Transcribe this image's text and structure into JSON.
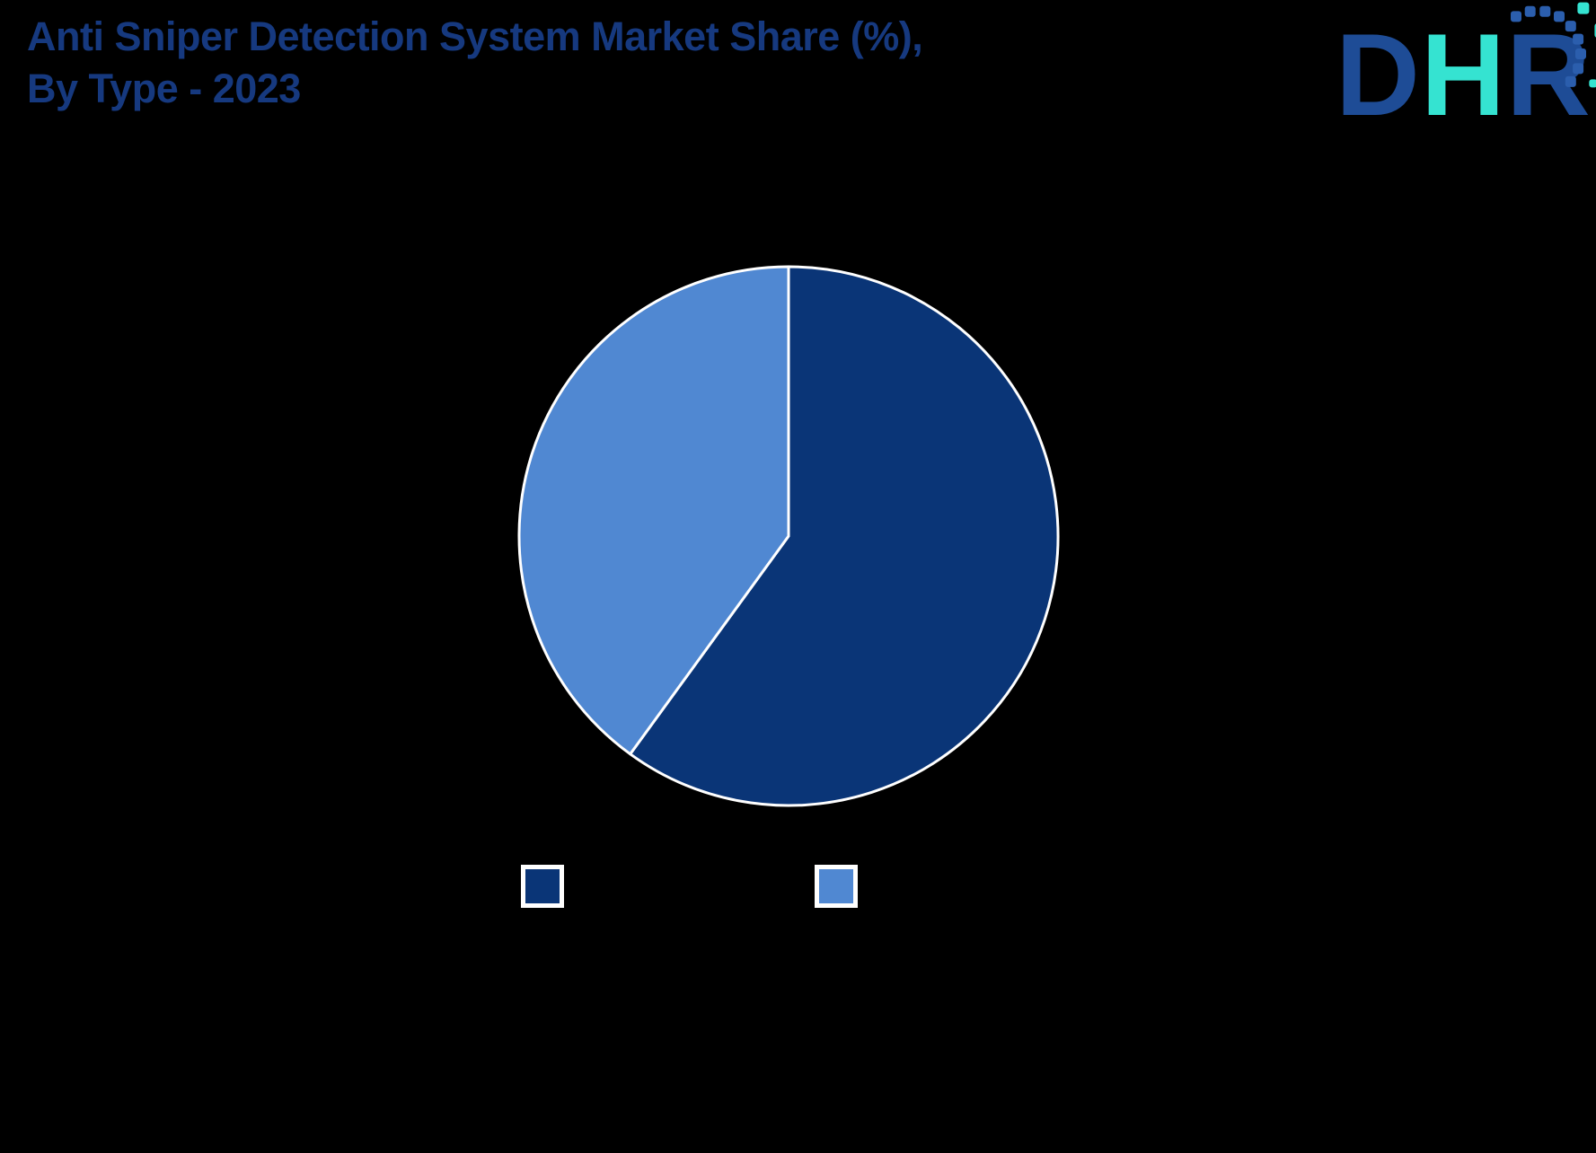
{
  "page": {
    "background_color": "#000000"
  },
  "header": {
    "title_line1": "Anti Sniper Detection System Market Share (%),",
    "title_line2": "By Type - 2023",
    "title_color": "#16397F"
  },
  "logo": {
    "letters": [
      {
        "char": "D",
        "color": "#1E4C96"
      },
      {
        "char": "H",
        "color": "#35E3D1"
      },
      {
        "char": "R",
        "color": "#1E4C96"
      }
    ],
    "dot_colors": {
      "blue": "#2B5EAD",
      "teal": "#35E3D1"
    }
  },
  "chart_data": {
    "type": "pie",
    "title": "Anti Sniper Detection System Market Share (%), By Type - 2023",
    "unit": "%",
    "slices": [
      {
        "label": "",
        "value": 60,
        "color": "#0A3577"
      },
      {
        "label": "",
        "value": 40,
        "color": "#5088D2"
      }
    ],
    "start_angle_deg": 0,
    "direction": "clockwise",
    "edge_color": "#FFFFFF",
    "edge_width": 3,
    "labels_visible": false,
    "legend_position": "bottom"
  },
  "legend": {
    "items": [
      {
        "label": "",
        "color": "#0A3577"
      },
      {
        "label": "",
        "color": "#5088D2"
      }
    ]
  }
}
